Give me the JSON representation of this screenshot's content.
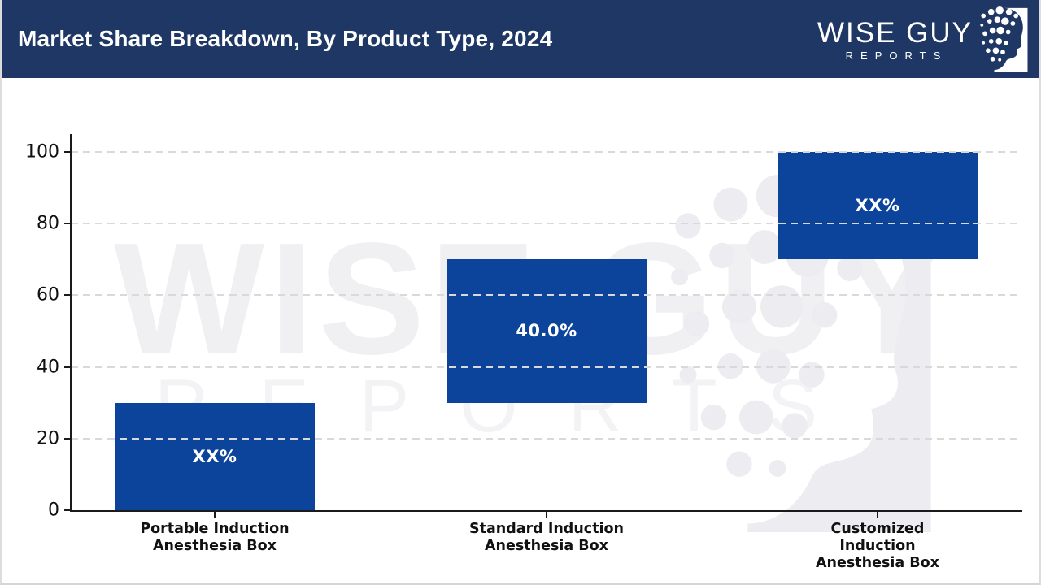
{
  "header": {
    "title": "Market Share Breakdown, By Product Type, 2024",
    "bg_color": "#1f3765",
    "logo": {
      "line1": "WISE GUY",
      "line2": "REPORTS"
    }
  },
  "watermark": {
    "line1": "WISE GUY",
    "line2": "REPORTS"
  },
  "chart_data": {
    "type": "bar",
    "variant": "floating-waterfall",
    "title": "Market Share Breakdown, By Product Type, 2024",
    "categories": [
      [
        "Portable Induction",
        "Anesthesia Box"
      ],
      [
        "Standard Induction",
        "Anesthesia Box"
      ],
      [
        "Customized",
        "Induction",
        "Anesthesia Box"
      ]
    ],
    "bars": [
      {
        "from": 0,
        "to": 30,
        "label": "XX%"
      },
      {
        "from": 30,
        "to": 70,
        "label": "40.0%"
      },
      {
        "from": 70,
        "to": 100,
        "label": "XX%"
      }
    ],
    "yticks": [
      0,
      20,
      40,
      60,
      80,
      100
    ],
    "ylim": [
      0,
      105
    ],
    "xlabel": "",
    "ylabel": "",
    "legend": null,
    "grid": "horizontal-dashed",
    "gridline_color": "#d9d9d9",
    "bar_color": "#0c439b",
    "axis_color": "#1a1a1a",
    "label_color": "#ffffff"
  }
}
